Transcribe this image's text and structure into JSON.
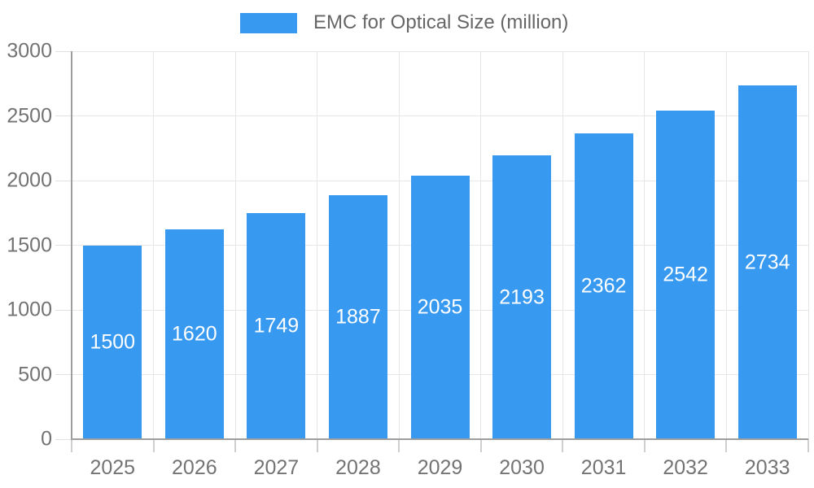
{
  "chart_data": {
    "type": "bar",
    "title": "EMC for Optical Size (million)",
    "legend": [
      "EMC for Optical Size (million)"
    ],
    "legend_position": "top",
    "categories": [
      "2025",
      "2026",
      "2027",
      "2028",
      "2029",
      "2030",
      "2031",
      "2032",
      "2033"
    ],
    "series": [
      {
        "name": "EMC for Optical Size (million)",
        "values": [
          1500,
          1620,
          1749,
          1887,
          2035,
          2193,
          2362,
          2542,
          2734
        ]
      }
    ],
    "value_labels": [
      "1500",
      "1620",
      "1749",
      "1887",
      "2035",
      "2193",
      "2362",
      "2542",
      "2734"
    ],
    "xlabel": "",
    "ylabel": "",
    "ylim": [
      0,
      3000
    ],
    "ytick_step": 500,
    "yticks": [
      "0",
      "500",
      "1000",
      "1500",
      "2000",
      "2500",
      "3000"
    ],
    "grid": true,
    "colors": {
      "bar": "#3899F0",
      "value_label": "#ffffff",
      "grid": "#e6e6e6",
      "axis": "#9e9e9e",
      "tick_label": "#737373",
      "legend_text": "#666666"
    }
  }
}
